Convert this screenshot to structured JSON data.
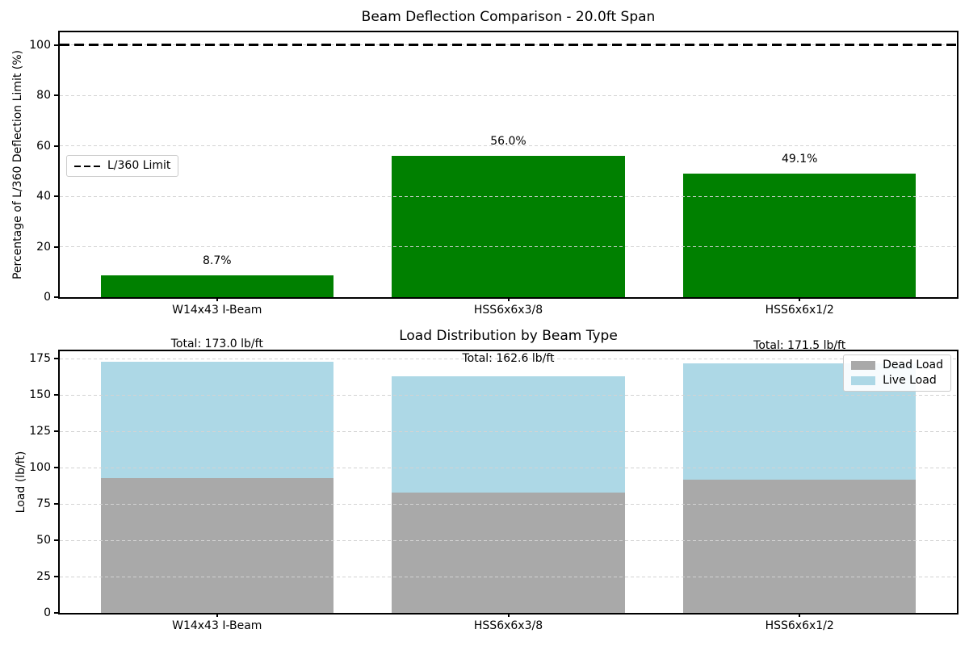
{
  "chart_data": [
    {
      "type": "bar",
      "title": "Beam Deflection Comparison - 20.0ft Span",
      "xlabel": "",
      "ylabel": "Percentage of L/360 Deflection Limit (%)",
      "categories": [
        "W14x43 I-Beam",
        "HSS6x6x3/8",
        "HSS6x6x1/2"
      ],
      "values": [
        8.7,
        56.0,
        49.1
      ],
      "bar_labels": [
        "8.7%",
        "56.0%",
        "49.1%"
      ],
      "bar_color": "#008000",
      "ylim": [
        0,
        105
      ],
      "yticks": [
        0,
        20,
        40,
        60,
        80,
        100
      ],
      "grid": "y-dashed",
      "gridline_color": "#d3d3d3",
      "reference_line": {
        "y": 100,
        "label": "L/360 Limit",
        "color": "#000000",
        "style": "dashed"
      },
      "legend": {
        "position": "center-left",
        "entries": [
          {
            "label": "L/360 Limit",
            "marker": "dashed-line",
            "color": "#000000"
          }
        ]
      }
    },
    {
      "type": "stacked-bar",
      "title": "Load Distribution by Beam Type",
      "xlabel": "",
      "ylabel": "Load (lb/ft)",
      "categories": [
        "W14x43 I-Beam",
        "HSS6x6x3/8",
        "HSS6x6x1/2"
      ],
      "series": [
        {
          "name": "Dead Load",
          "color": "#a9a9a9",
          "values": [
            93.0,
            82.6,
            91.5
          ]
        },
        {
          "name": "Live Load",
          "color": "#add8e6",
          "values": [
            80.0,
            80.0,
            80.0
          ]
        }
      ],
      "totals": [
        173.0,
        162.6,
        171.5
      ],
      "total_labels": [
        "Total: 173.0 lb/ft",
        "Total: 162.6 lb/ft",
        "Total: 171.5 lb/ft"
      ],
      "ylim": [
        0,
        180
      ],
      "yticks": [
        0,
        25,
        50,
        75,
        100,
        125,
        150,
        175
      ],
      "grid": "y-dashed",
      "gridline_color": "#d3d3d3",
      "legend": {
        "position": "upper-right",
        "entries": [
          {
            "label": "Dead Load",
            "marker": "patch",
            "color": "#a9a9a9"
          },
          {
            "label": "Live Load",
            "marker": "patch",
            "color": "#add8e6"
          }
        ]
      }
    }
  ]
}
